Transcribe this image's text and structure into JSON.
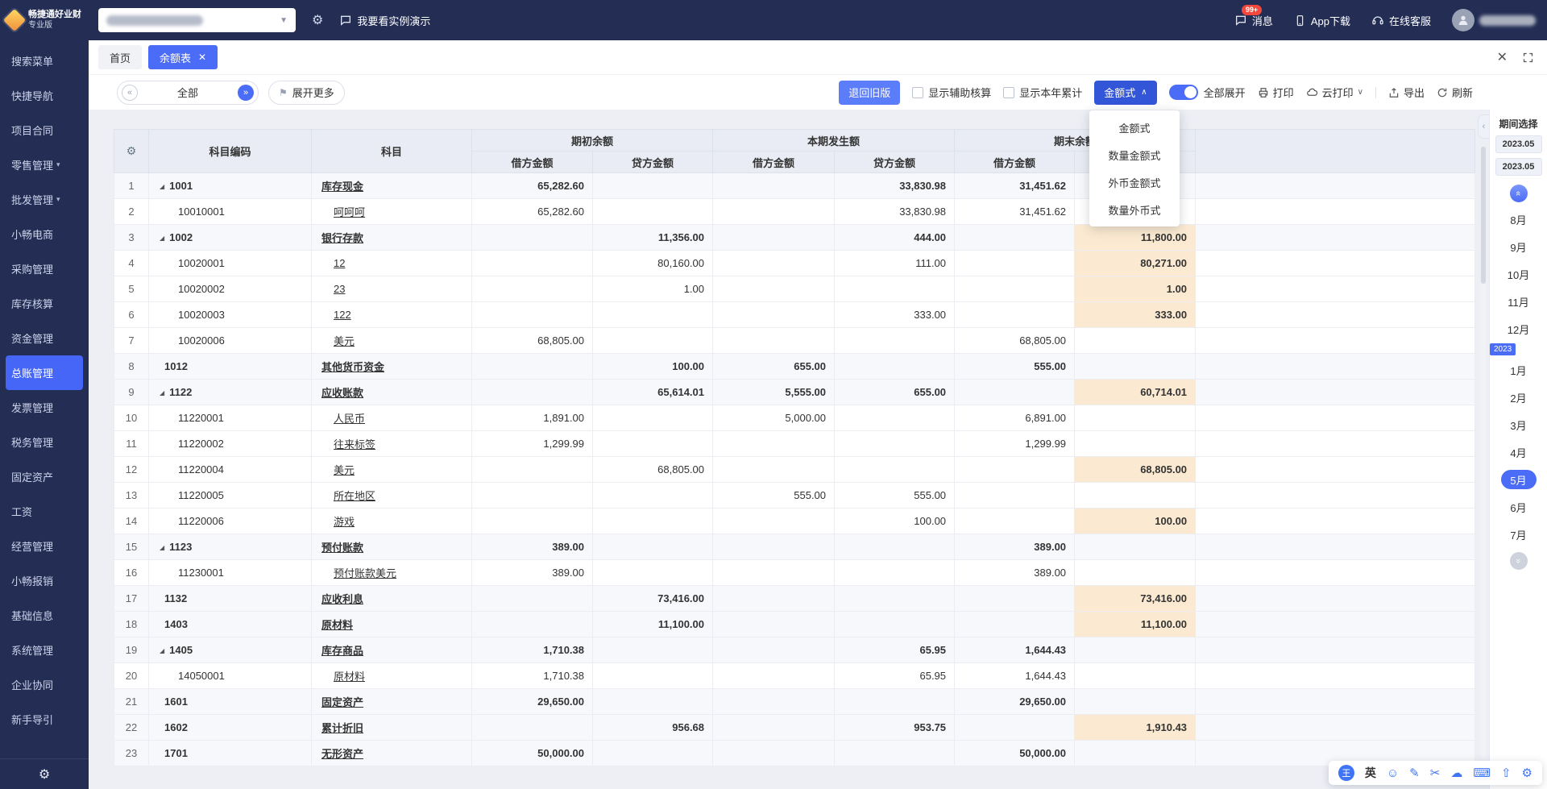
{
  "brand": {
    "name": "畅捷通好业财",
    "edition": "专业版"
  },
  "topbar": {
    "demo": "我要看实例演示",
    "msg": "消息",
    "msg_badge": "99+",
    "app": "App下载",
    "service": "在线客服"
  },
  "sidebar": {
    "items": [
      {
        "label": "搜索菜单"
      },
      {
        "label": "快捷导航"
      },
      {
        "label": "项目合同"
      },
      {
        "label": "零售管理",
        "arrow": true
      },
      {
        "label": "批发管理",
        "arrow": true
      },
      {
        "label": "小畅电商"
      },
      {
        "label": "采购管理"
      },
      {
        "label": "库存核算"
      },
      {
        "label": "资金管理"
      },
      {
        "label": "总账管理",
        "selected": true
      },
      {
        "label": "发票管理"
      },
      {
        "label": "税务管理"
      },
      {
        "label": "固定资产"
      },
      {
        "label": "工资"
      },
      {
        "label": "经营管理"
      },
      {
        "label": "小畅报销"
      },
      {
        "label": "基础信息"
      },
      {
        "label": "系统管理"
      },
      {
        "label": "企业协同"
      },
      {
        "label": "新手导引"
      }
    ]
  },
  "tabs": {
    "home": "首页",
    "active": "余额表"
  },
  "toolbar": {
    "select_value": "全部",
    "expand_more": "展开更多",
    "back_old": "退回旧版",
    "chk_aux": "显示辅助核算",
    "chk_ytd": "显示本年累计",
    "format_btn": "金额式",
    "toggle_label": "全部展开",
    "print": "打印",
    "cloud_print": "云打印",
    "export": "导出",
    "refresh": "刷新"
  },
  "format_menu": {
    "items": [
      "金额式",
      "数量金额式",
      "外币金额式",
      "数量外币式"
    ]
  },
  "table": {
    "col_code": "科目编码",
    "col_name": "科目",
    "groups": [
      "期初余额",
      "本期发生额",
      "期末余额"
    ],
    "sub_headers": [
      "借方金额",
      "贷方金额",
      "借方金额",
      "贷方金额",
      "借方金额",
      "贷方金额"
    ],
    "rows": [
      {
        "n": 1,
        "code": "1001",
        "name": "库存现金",
        "parent": true,
        "expand": true,
        "v": [
          "65,282.60",
          "",
          "",
          "33,830.98",
          "31,451.62",
          ""
        ]
      },
      {
        "n": 2,
        "code": "10010001",
        "name": "呵呵呵",
        "parent": false,
        "expand": false,
        "v": [
          "65,282.60",
          "",
          "",
          "33,830.98",
          "31,451.62",
          ""
        ]
      },
      {
        "n": 3,
        "code": "1002",
        "name": "银行存款",
        "parent": true,
        "expand": true,
        "v": [
          "",
          "11,356.00",
          "",
          "444.00",
          "",
          "11,800.00"
        ]
      },
      {
        "n": 4,
        "code": "10020001",
        "name": "12",
        "parent": false,
        "expand": false,
        "v": [
          "",
          "80,160.00",
          "",
          "111.00",
          "",
          "80,271.00"
        ]
      },
      {
        "n": 5,
        "code": "10020002",
        "name": "23",
        "parent": false,
        "expand": false,
        "v": [
          "",
          "1.00",
          "",
          "",
          "",
          "1.00"
        ]
      },
      {
        "n": 6,
        "code": "10020003",
        "name": "122",
        "parent": false,
        "expand": false,
        "v": [
          "",
          "",
          "",
          "333.00",
          "",
          "333.00"
        ]
      },
      {
        "n": 7,
        "code": "10020006",
        "name": "美元",
        "parent": false,
        "expand": false,
        "v": [
          "68,805.00",
          "",
          "",
          "",
          "68,805.00",
          ""
        ]
      },
      {
        "n": 8,
        "code": "1012",
        "name": "其他货币资金",
        "parent": true,
        "expand": false,
        "v": [
          "",
          "100.00",
          "655.00",
          "",
          "555.00",
          ""
        ]
      },
      {
        "n": 9,
        "code": "1122",
        "name": "应收账款",
        "parent": true,
        "expand": true,
        "v": [
          "",
          "65,614.01",
          "5,555.00",
          "655.00",
          "",
          "60,714.01"
        ]
      },
      {
        "n": 10,
        "code": "11220001",
        "name": "人民币",
        "parent": false,
        "expand": false,
        "v": [
          "1,891.00",
          "",
          "5,000.00",
          "",
          "6,891.00",
          ""
        ]
      },
      {
        "n": 11,
        "code": "11220002",
        "name": "往来标签",
        "parent": false,
        "expand": false,
        "v": [
          "1,299.99",
          "",
          "",
          "",
          "1,299.99",
          ""
        ]
      },
      {
        "n": 12,
        "code": "11220004",
        "name": "美元",
        "parent": false,
        "expand": false,
        "v": [
          "",
          "68,805.00",
          "",
          "",
          "",
          "68,805.00"
        ]
      },
      {
        "n": 13,
        "code": "11220005",
        "name": "所在地区",
        "parent": false,
        "expand": false,
        "v": [
          "",
          "",
          "555.00",
          "555.00",
          "",
          ""
        ]
      },
      {
        "n": 14,
        "code": "11220006",
        "name": "游戏",
        "parent": false,
        "expand": false,
        "v": [
          "",
          "",
          "",
          "100.00",
          "",
          "100.00"
        ]
      },
      {
        "n": 15,
        "code": "1123",
        "name": "预付账款",
        "parent": true,
        "expand": true,
        "v": [
          "389.00",
          "",
          "",
          "",
          "389.00",
          ""
        ]
      },
      {
        "n": 16,
        "code": "11230001",
        "name": "预付账款美元",
        "parent": false,
        "expand": false,
        "v": [
          "389.00",
          "",
          "",
          "",
          "389.00",
          ""
        ]
      },
      {
        "n": 17,
        "code": "1132",
        "name": "应收利息",
        "parent": true,
        "expand": false,
        "v": [
          "",
          "73,416.00",
          "",
          "",
          "",
          "73,416.00"
        ]
      },
      {
        "n": 18,
        "code": "1403",
        "name": "原材料",
        "parent": true,
        "expand": false,
        "v": [
          "",
          "11,100.00",
          "",
          "",
          "",
          "11,100.00"
        ]
      },
      {
        "n": 19,
        "code": "1405",
        "name": "库存商品",
        "parent": true,
        "expand": true,
        "v": [
          "1,710.38",
          "",
          "",
          "65.95",
          "1,644.43",
          ""
        ]
      },
      {
        "n": 20,
        "code": "14050001",
        "name": "原材料",
        "parent": false,
        "expand": false,
        "v": [
          "1,710.38",
          "",
          "",
          "65.95",
          "1,644.43",
          ""
        ]
      },
      {
        "n": 21,
        "code": "1601",
        "name": "固定资产",
        "parent": true,
        "expand": false,
        "v": [
          "29,650.00",
          "",
          "",
          "",
          "29,650.00",
          ""
        ]
      },
      {
        "n": 22,
        "code": "1602",
        "name": "累计折旧",
        "parent": true,
        "expand": false,
        "v": [
          "",
          "956.68",
          "",
          "953.75",
          "",
          "1,910.43"
        ]
      },
      {
        "n": 23,
        "code": "1701",
        "name": "无形资产",
        "parent": true,
        "expand": false,
        "v": [
          "50,000.00",
          "",
          "",
          "",
          "50,000.00",
          ""
        ]
      }
    ]
  },
  "period": {
    "panel_title": "期间选择",
    "date_from": "2023.05",
    "date_to": "2023.05",
    "year_badge": "2023",
    "months": [
      {
        "label": "8月"
      },
      {
        "label": "9月"
      },
      {
        "label": "10月"
      },
      {
        "label": "11月"
      },
      {
        "label": "12月"
      },
      {
        "badge": "2023"
      },
      {
        "label": "1月"
      },
      {
        "label": "2月"
      },
      {
        "label": "3月"
      },
      {
        "label": "4月"
      },
      {
        "label": "5月",
        "selected": true
      },
      {
        "label": "6月"
      },
      {
        "label": "7月"
      }
    ]
  },
  "ime": {
    "logo": "王",
    "lang": "英",
    "icons": [
      {
        "name": "emoji-icon",
        "glyph": "☺"
      },
      {
        "name": "pen-icon",
        "glyph": "✎"
      },
      {
        "name": "scissors-icon",
        "glyph": "✂"
      },
      {
        "name": "cloud-icon",
        "glyph": "☁"
      },
      {
        "name": "keyboard-icon",
        "glyph": "⌨"
      },
      {
        "name": "shift-icon",
        "glyph": "⇧"
      },
      {
        "name": "gear-icon",
        "glyph": "⚙"
      }
    ]
  }
}
